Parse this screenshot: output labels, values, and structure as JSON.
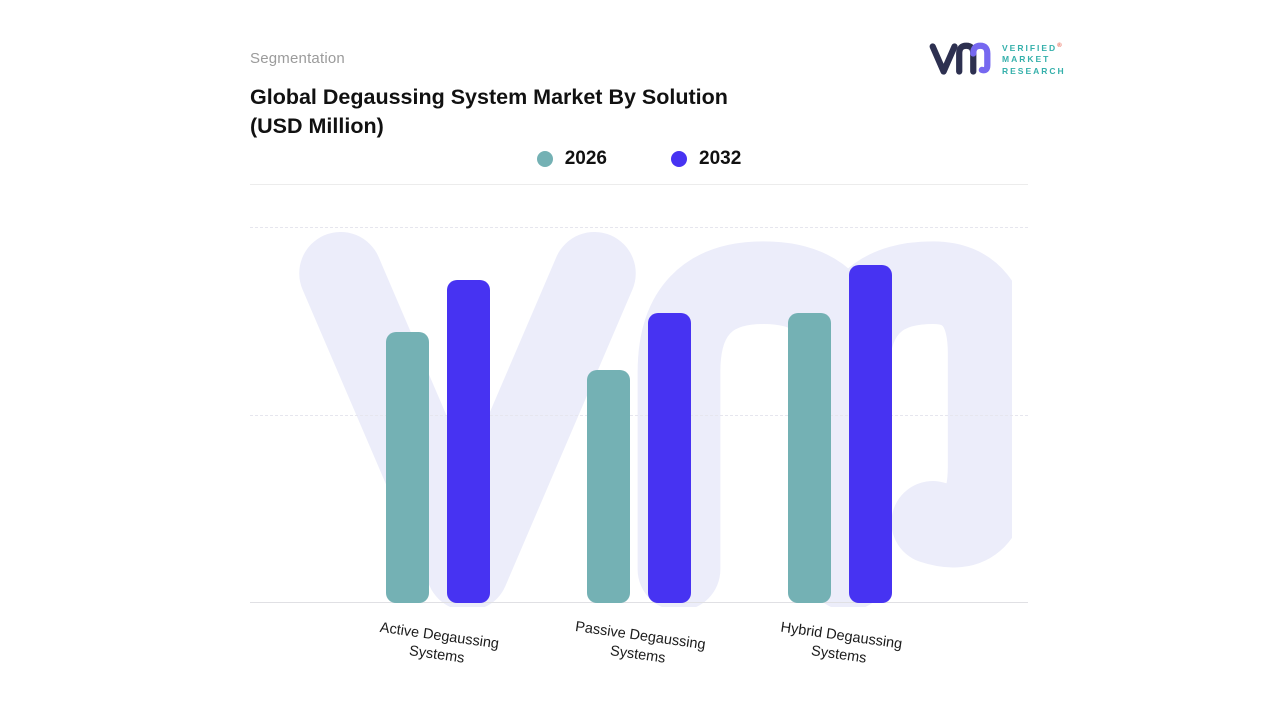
{
  "page": {
    "eyebrow": "Segmentation",
    "title": "Global Degaussing System Market By Solution (USD Million)"
  },
  "logo": {
    "line1": "VERIFIED",
    "line2": "MARKET",
    "line3": "RESEARCH",
    "registered": "®",
    "teal": "#35b0ab",
    "navy": "#2d3050",
    "purple": "#7668f0"
  },
  "legend": [
    {
      "label": "2026",
      "color": "#74b1b4"
    },
    {
      "label": "2032",
      "color": "#4733f2"
    }
  ],
  "chart_data": {
    "type": "bar",
    "title": "Global Degaussing System Market By Solution (USD Million)",
    "units": "USD Million",
    "categories": [
      "Active Degaussing Systems",
      "Passive Degaussing Systems",
      "Hybrid Degaussing Systems"
    ],
    "series": [
      {
        "name": "2026",
        "color": "#74b1b4",
        "values": [
          72,
          62,
          77
        ]
      },
      {
        "name": "2032",
        "color": "#4733f2",
        "values": [
          86,
          77,
          90
        ]
      }
    ],
    "xlabel": "",
    "ylabel": "",
    "ylim": [
      0,
      100
    ],
    "grid": "horizontal-dashed",
    "legend_position": "top-center",
    "watermark": "VM"
  }
}
